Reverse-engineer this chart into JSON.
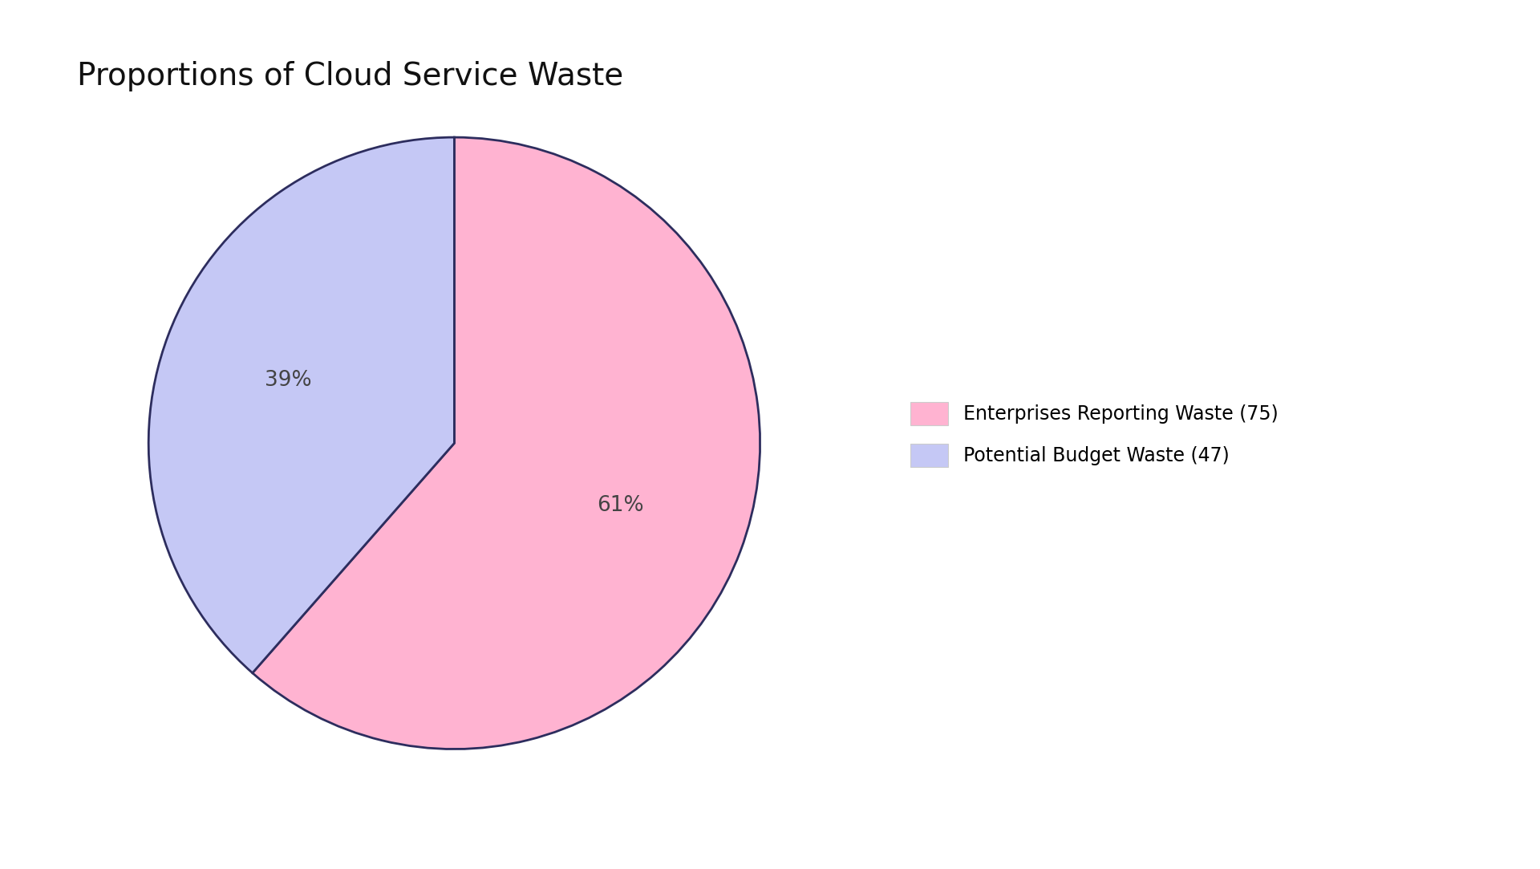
{
  "title": "Proportions of Cloud Service Waste",
  "slices": [
    75,
    47
  ],
  "labels": [
    "Enterprises Reporting Waste (75)",
    "Potential Budget Waste (47)"
  ],
  "colors": [
    "#FFB3D1",
    "#C5C8F5"
  ],
  "edge_color": "#2d2d5e",
  "pct_labels": [
    "61%",
    "39%"
  ],
  "startangle": 90,
  "title_fontsize": 28,
  "legend_fontsize": 17,
  "pct_fontsize": 19,
  "background_color": "#ffffff"
}
